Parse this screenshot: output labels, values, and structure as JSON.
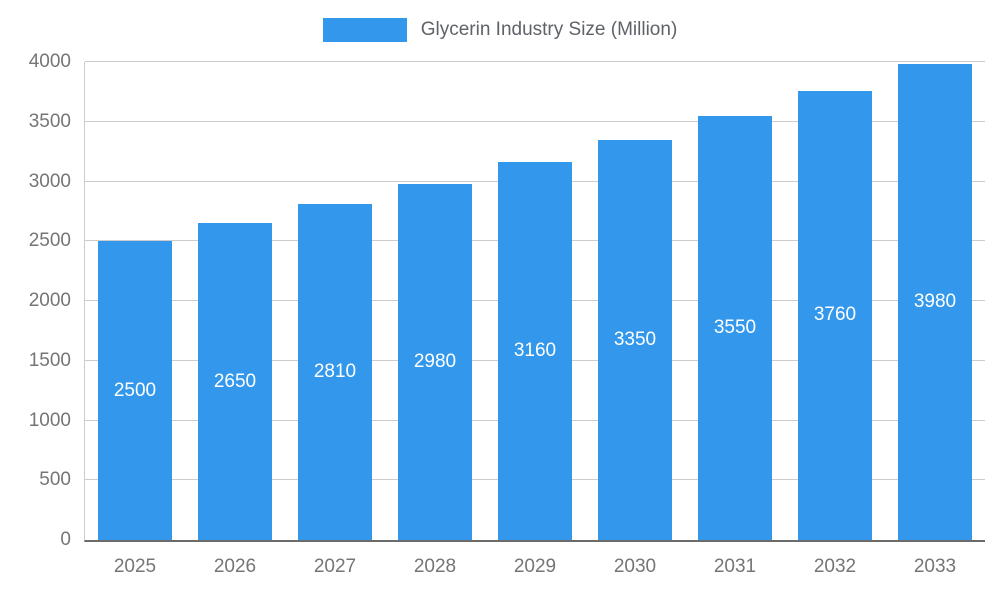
{
  "chart_data": {
    "type": "bar",
    "title": "Glycerin Industry Size (Million)",
    "legend": "Glycerin Industry Size (Million)",
    "legend_position": "top",
    "categories": [
      "2025",
      "2026",
      "2027",
      "2028",
      "2029",
      "2030",
      "2031",
      "2032",
      "2033"
    ],
    "values": [
      2500,
      2650,
      2810,
      2980,
      3160,
      3350,
      3550,
      3760,
      3980
    ],
    "xlabel": "",
    "ylabel": "",
    "ylim": [
      0,
      4000
    ],
    "ytick_step": 500,
    "grid": true,
    "bar_color": "#3398ec",
    "value_label_color": "#ffffff",
    "axis_text_color": "#757575"
  }
}
